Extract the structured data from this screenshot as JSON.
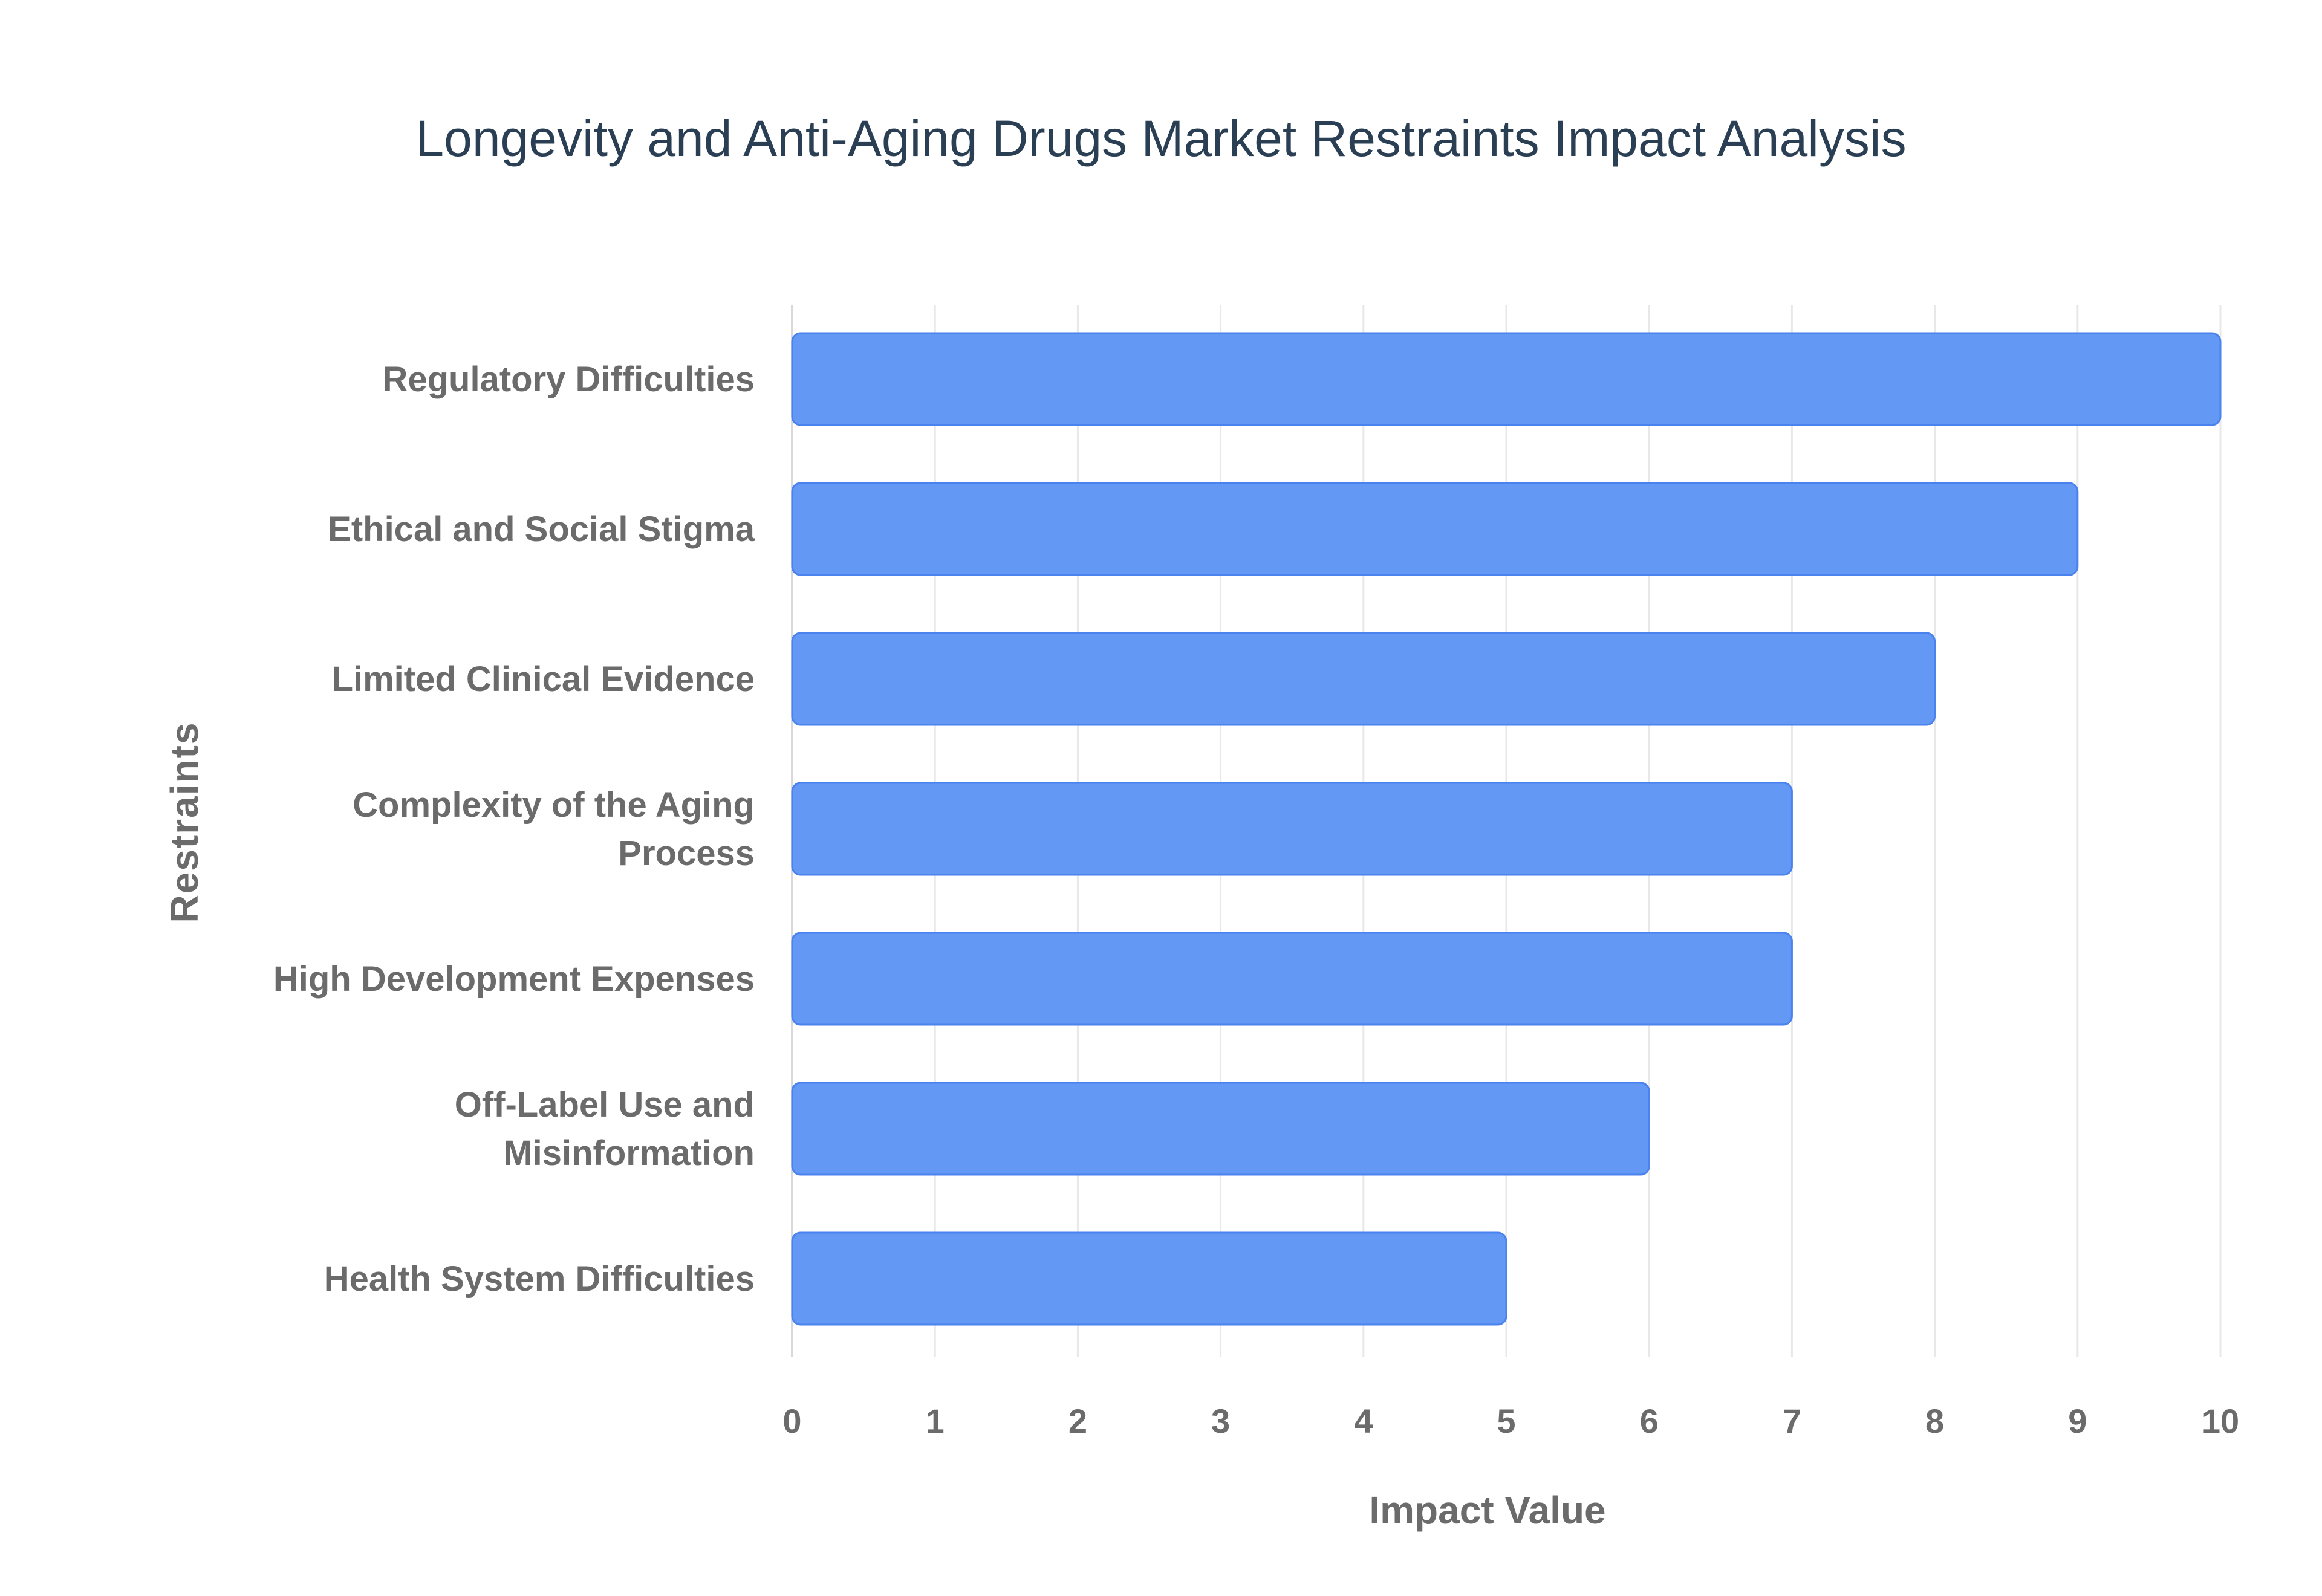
{
  "chart_data": {
    "type": "bar",
    "orientation": "horizontal",
    "title": "Longevity and Anti-Aging Drugs Market Restraints Impact Analysis",
    "xlabel": "Impact Value",
    "ylabel": "Restraints",
    "categories": [
      "Regulatory Difficulties",
      "Ethical and Social Stigma",
      "Limited Clinical Evidence",
      "Complexity of the Aging Process",
      "High Development Expenses",
      "Off-Label Use and Misinformation",
      "Health System Difficulties"
    ],
    "values": [
      10,
      9,
      8,
      7,
      7,
      6,
      5
    ],
    "xlim": [
      0,
      10
    ],
    "xticks": [
      "0",
      "1",
      "2",
      "3",
      "4",
      "5",
      "6",
      "7",
      "8",
      "9",
      "10"
    ],
    "grid": true,
    "legend": "none",
    "colors": {
      "bar_fill": "#6398f5",
      "bar_stroke": "#4a82ee",
      "title": "#2a3f54",
      "axis_text": "#6b6b6b",
      "grid": "#e8e8e8"
    }
  }
}
